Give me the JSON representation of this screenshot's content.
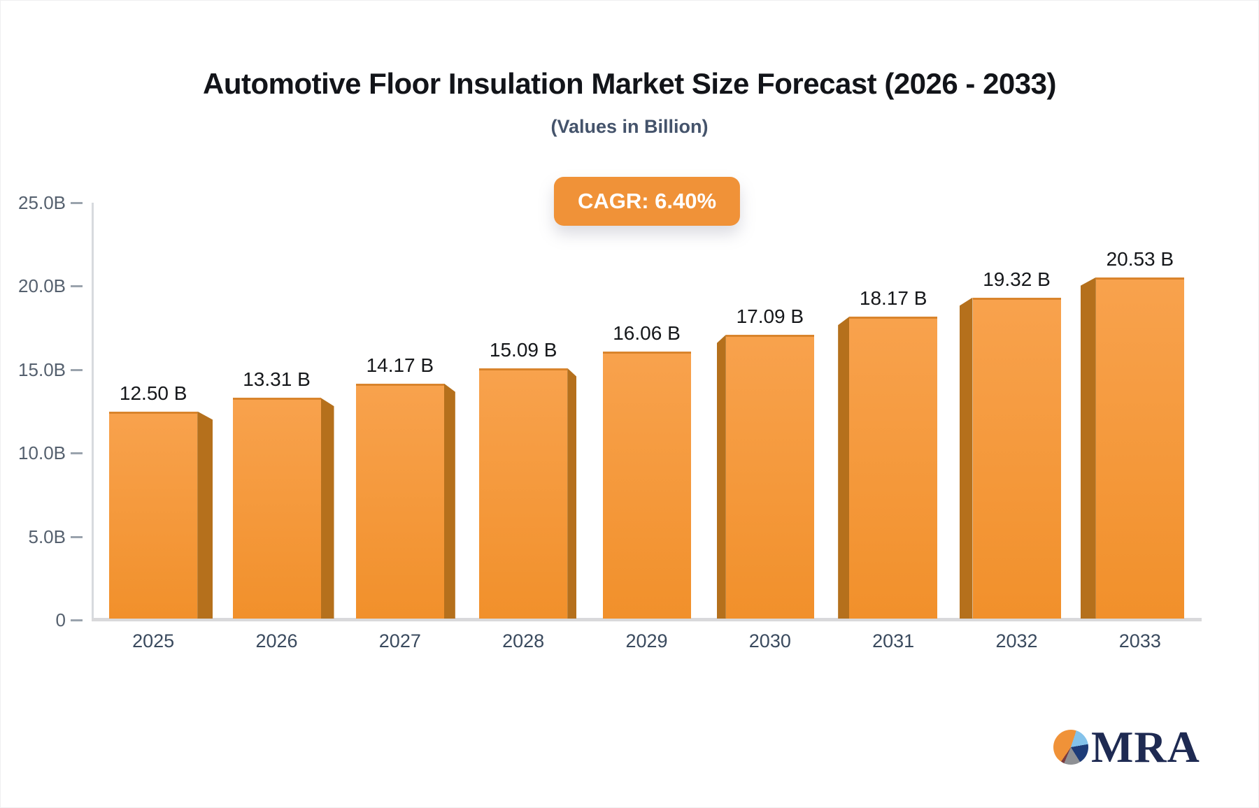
{
  "header": {
    "title": "Automotive Floor Insulation Market Size Forecast (2026 - 2033)",
    "subtitle": "(Values in Billion)",
    "cagr_label": "CAGR: 6.40%"
  },
  "chart_data": {
    "type": "bar",
    "title": "Automotive Floor Insulation Market Size Forecast (2026 - 2033)",
    "subtitle": "(Values in Billion)",
    "cagr": "6.40%",
    "categories": [
      "2025",
      "2026",
      "2027",
      "2028",
      "2029",
      "2030",
      "2031",
      "2032",
      "2033"
    ],
    "values": [
      12.5,
      13.31,
      14.17,
      15.09,
      16.06,
      17.09,
      18.17,
      19.32,
      20.53
    ],
    "value_labels": [
      "12.50 B",
      "13.31 B",
      "14.17 B",
      "15.09 B",
      "16.06 B",
      "17.09 B",
      "18.17 B",
      "19.32 B",
      "20.53 B"
    ],
    "ylim": [
      0,
      25
    ],
    "yticks": {
      "values": [
        0,
        5,
        10,
        15,
        20,
        25
      ],
      "labels": [
        "0",
        "5.0B",
        "10.0B",
        "15.0B",
        "20.0B",
        "25.0B"
      ]
    },
    "grid": false,
    "legend": "none",
    "style": "3d-perspective-bars",
    "colors": {
      "bar_front_top": "#F8A24D",
      "bar_front_bottom": "#F1902B",
      "bar_top_edge": "#D9842C",
      "bar_side": "#B5701C",
      "badge_bg": "#F09238",
      "axis_line": "#D7DADE",
      "baseline": "#D9D9DB",
      "tick_dash": "#9AA3AD",
      "tick_text": "#55606E",
      "year_text": "#3A4A5E",
      "value_text": "#15171A"
    }
  },
  "logo": {
    "text": "MRA",
    "text_color": "#1E2A52",
    "pie_colors": {
      "orange": "#F09238",
      "light_blue": "#84C2EA",
      "navy": "#1E3C78",
      "gray": "#8E9094",
      "maroon": "#7A3B3F"
    }
  }
}
